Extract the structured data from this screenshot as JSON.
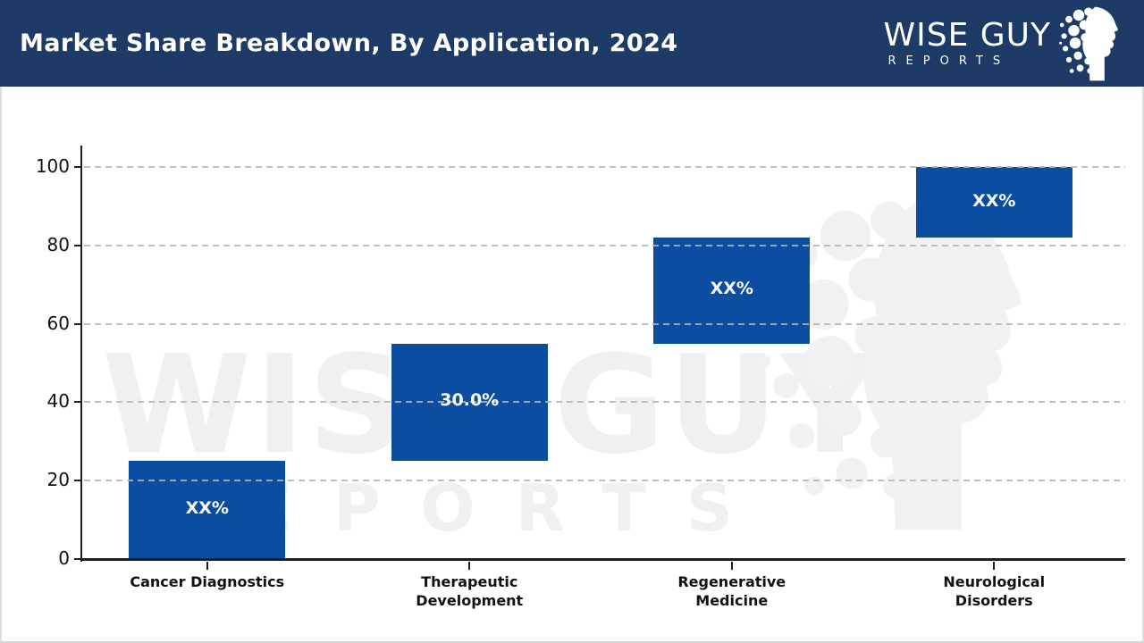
{
  "header": {
    "title": "Market Share Breakdown, By Application, 2024",
    "logo": {
      "primary": "WISE GUY",
      "secondary": "REPORTS"
    }
  },
  "watermark": {
    "primary": "WISE GUY",
    "secondary": "REPORTS"
  },
  "chart_data": {
    "type": "bar",
    "variant": "waterfall",
    "title": "Market Share Breakdown, By Application, 2024",
    "categories": [
      "Cancer Diagnostics",
      "Therapeutic Development",
      "Regenerative Medicine",
      "Neurological Disorders"
    ],
    "segments": [
      {
        "category": "Cancer Diagnostics",
        "start": 0,
        "end": 25,
        "label": "XX%"
      },
      {
        "category": "Therapeutic Development",
        "start": 25,
        "end": 55,
        "label": "30.0%"
      },
      {
        "category": "Regenerative Medicine",
        "start": 55,
        "end": 82,
        "label": "XX%"
      },
      {
        "category": "Neurological Disorders",
        "start": 82,
        "end": 100,
        "label": "XX%"
      }
    ],
    "ylim": [
      0,
      100
    ],
    "yticks": [
      0,
      20,
      40,
      60,
      80,
      100
    ],
    "xlabel": "",
    "ylabel": "",
    "grid": {
      "horizontal": true,
      "style": "dashed"
    },
    "legend": "none",
    "bar_color": "#0b4da1",
    "bar_label_color": "#ffffff"
  },
  "colors": {
    "header_bg": "#1e3a66",
    "bar": "#0b4da1",
    "axis": "#1f1f1f",
    "gridline": "#c9c9c9",
    "watermark": "#f0f0f2",
    "panel_border": "#dcdcdc",
    "background": "#ffffff"
  }
}
